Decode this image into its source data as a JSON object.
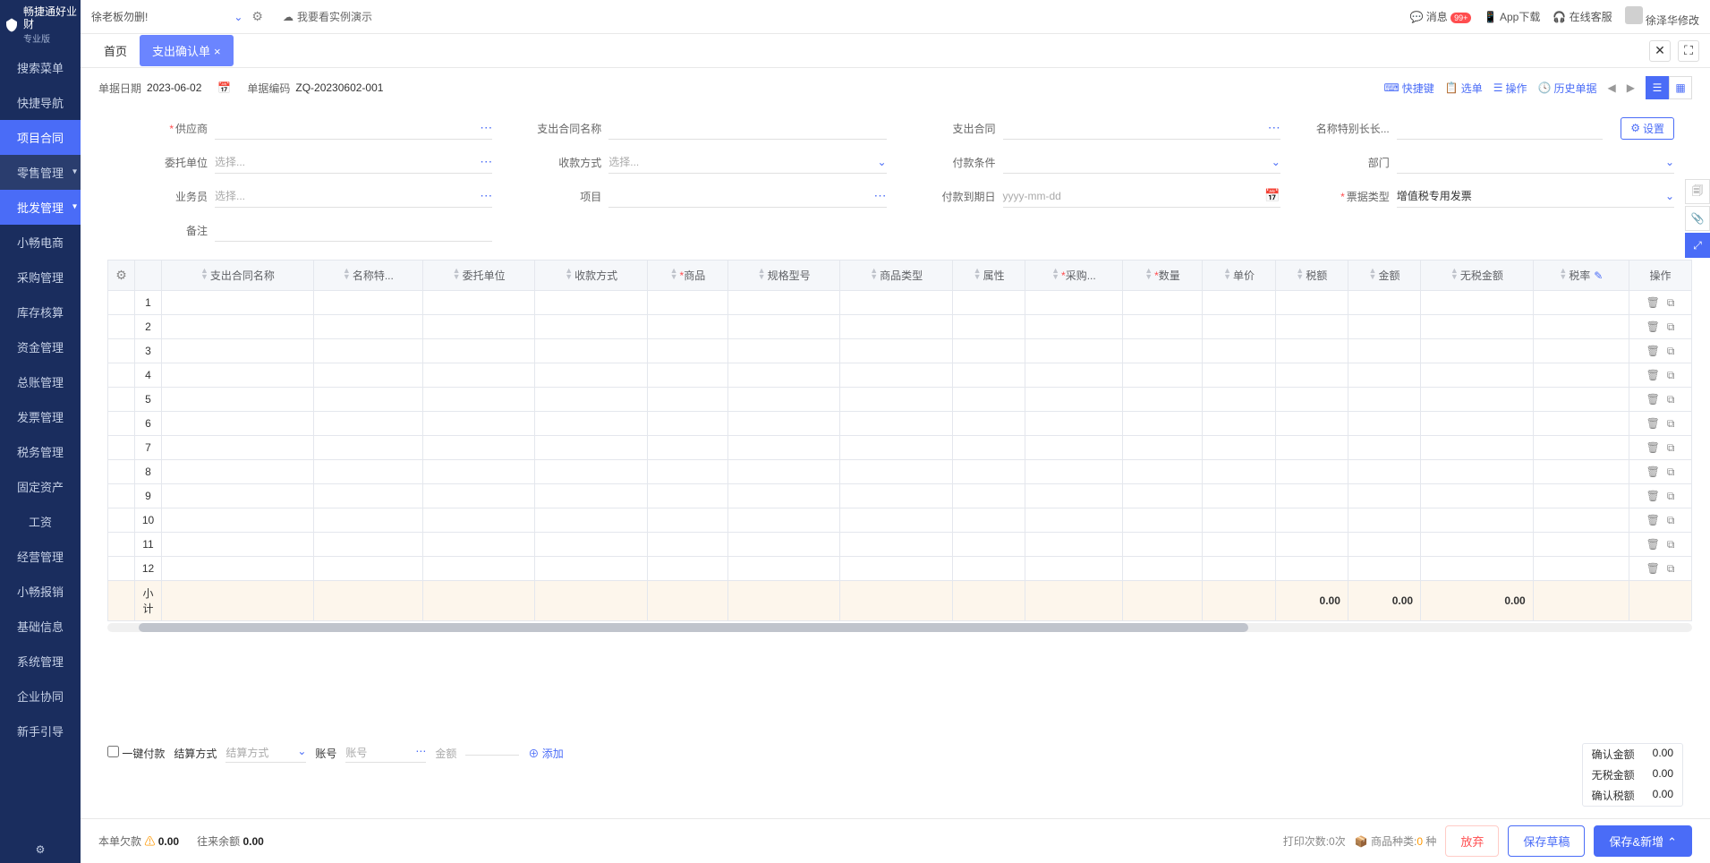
{
  "brand": {
    "name": "畅捷通好业财",
    "edition": "专业版"
  },
  "sidebar": {
    "items": [
      {
        "label": "搜索菜单"
      },
      {
        "label": "快捷导航"
      },
      {
        "label": "项目合同",
        "active": true
      },
      {
        "label": "零售管理",
        "caret": true,
        "sub": true
      },
      {
        "label": "批发管理",
        "caret": true,
        "active": true
      },
      {
        "label": "小畅电商"
      },
      {
        "label": "采购管理"
      },
      {
        "label": "库存核算"
      },
      {
        "label": "资金管理"
      },
      {
        "label": "总账管理"
      },
      {
        "label": "发票管理"
      },
      {
        "label": "税务管理"
      },
      {
        "label": "固定资产"
      },
      {
        "label": "工资"
      },
      {
        "label": "经营管理"
      },
      {
        "label": "小畅报销"
      },
      {
        "label": "基础信息"
      },
      {
        "label": "系统管理"
      },
      {
        "label": "企业协同"
      },
      {
        "label": "新手引导"
      }
    ]
  },
  "topbar": {
    "title": "徐老板勿删!",
    "demo": "我要看实例演示",
    "msg": "消息",
    "badge": "99+",
    "app": "App下载",
    "cs": "在线客服",
    "user": "徐泽华修改"
  },
  "tabs": {
    "home": "首页",
    "active": "支出确认单"
  },
  "toolbar": {
    "dateLabel": "单据日期",
    "date": "2023-06-02",
    "codeLabel": "单据编码",
    "code": "ZQ-20230602-001",
    "hotkey": "快捷键",
    "pick": "选单",
    "ops": "操作",
    "hist": "历史单据"
  },
  "form": {
    "supplier": "供应商",
    "contractName": "支出合同名称",
    "contract": "支出合同",
    "nameLong": "名称特别长长...",
    "settings": "设置",
    "entrust": "委托单位",
    "receiveType": "收款方式",
    "payCond": "付款条件",
    "dept": "部门",
    "salesman": "业务员",
    "project": "项目",
    "dueDate": "付款到期日",
    "dueDatePh": "yyyy-mm-dd",
    "invoiceType": "票据类型",
    "invoiceVal": "增值税专用发票",
    "remark": "备注",
    "selectPh": "选择..."
  },
  "table": {
    "columns": [
      "支出合同名称",
      "名称特...",
      "委托单位",
      "收款方式",
      "商品",
      "规格型号",
      "商品类型",
      "属性",
      "采购...",
      "数量",
      "单价",
      "税额",
      "金额",
      "无税金额",
      "税率"
    ],
    "required": {
      "4": true,
      "8": true,
      "9": true
    },
    "opCol": "操作",
    "rows": 12,
    "subtotal": "小计",
    "subtotalVals": {
      "税额": "0.00",
      "金额": "0.00",
      "无税金额": "0.00"
    }
  },
  "settle": {
    "oneClick": "一键付款",
    "methodLabel": "结算方式",
    "methodPh": "结算方式",
    "acctLabel": "账号",
    "acctPh": "账号",
    "amtLabel": "金额",
    "add": "添加"
  },
  "summary": {
    "rows": [
      {
        "l": "确认金额",
        "v": "0.00"
      },
      {
        "l": "无税金额",
        "v": "0.00"
      },
      {
        "l": "确认税额",
        "v": "0.00"
      }
    ]
  },
  "footer": {
    "owe": "本单欠款",
    "oweCheck": " ",
    "oweAmt": "0.00",
    "bal": "往来余额",
    "balAmt": "0.00",
    "printCount": "打印次数:0次",
    "kinds": "商品种类:",
    "kindsVal": "0",
    "kindsUnit": " 种",
    "discard": "放弃",
    "draft": "保存草稿",
    "save": "保存&新增"
  }
}
